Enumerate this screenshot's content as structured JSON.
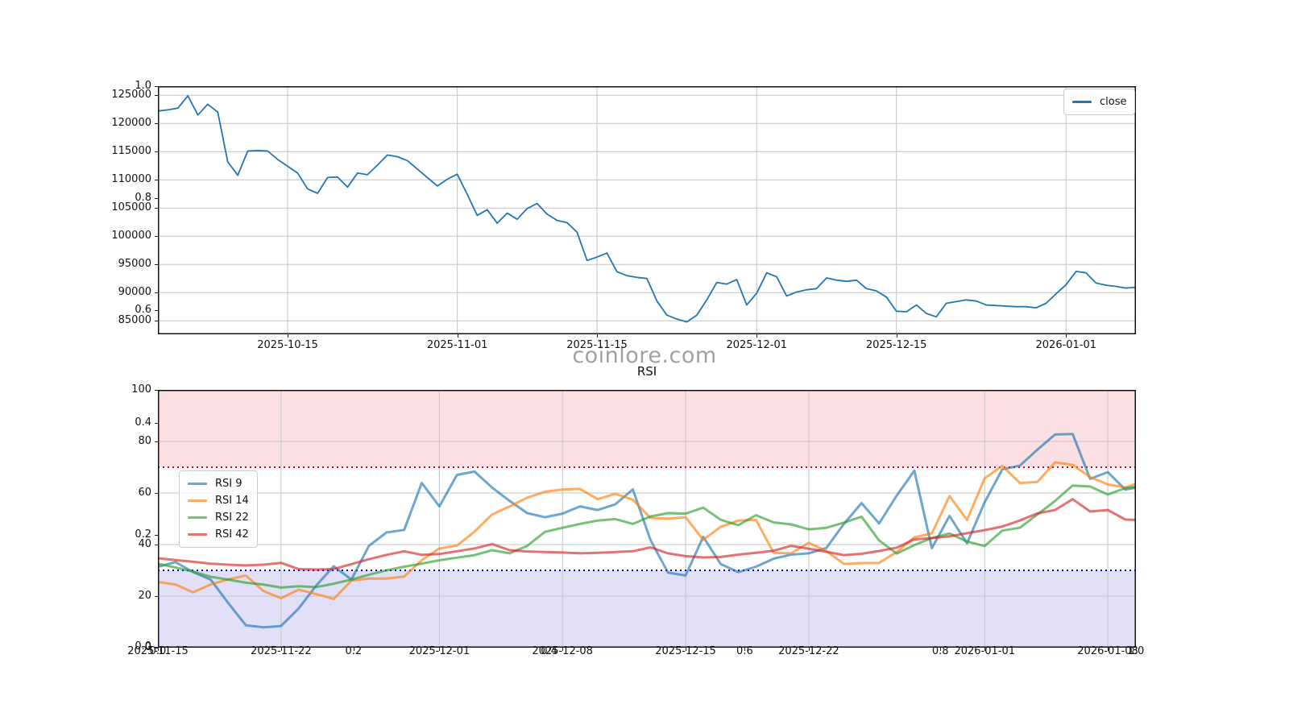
{
  "watermark": "coinlore.com",
  "overlay_axis": {
    "yticks": [
      "1.0",
      "0.8",
      "0.6",
      "0.4",
      "0.2",
      "0.0"
    ],
    "xticks": [
      "0.0",
      "0.2",
      "0.4",
      "0.6",
      "0.8",
      "1.0"
    ]
  },
  "chart_data": [
    {
      "id": "price",
      "type": "line",
      "title": "",
      "legend_position": "upper right",
      "grid": true,
      "x_start": "2025-10-02",
      "x_end": "2026-01-08",
      "x_interval": "1 day",
      "ylim": [
        82600,
        126600
      ],
      "yticks": [
        "125000",
        "120000",
        "115000",
        "110000",
        "105000",
        "100000",
        "95000",
        "90000",
        "85000"
      ],
      "xticks": [
        {
          "label": "2025-10-15",
          "day_index": 13
        },
        {
          "label": "2025-11-01",
          "day_index": 30
        },
        {
          "label": "2025-11-15",
          "day_index": 44
        },
        {
          "label": "2025-12-01",
          "day_index": 60
        },
        {
          "label": "2025-12-15",
          "day_index": 74
        },
        {
          "label": "2026-01-01",
          "day_index": 91
        }
      ],
      "series": [
        {
          "name": "close",
          "color": "#1f77b4",
          "opacity": 1,
          "width": 1.8,
          "values": [
            122200,
            122400,
            122700,
            124900,
            121500,
            123400,
            122000,
            113200,
            110800,
            115100,
            115200,
            115100,
            113600,
            112400,
            111200,
            108400,
            107600,
            110400,
            110500,
            108700,
            111200,
            110900,
            112600,
            114400,
            114100,
            113400,
            111900,
            110400,
            108900,
            110100,
            111000,
            107400,
            103700,
            104700,
            102300,
            104100,
            103000,
            104900,
            105800,
            103900,
            102800,
            102400,
            100700,
            95700,
            96300,
            97000,
            93700,
            93000,
            92700,
            92500,
            88500,
            86000,
            85300,
            84800,
            86000,
            88700,
            91800,
            91500,
            92300,
            87800,
            89900,
            93500,
            92800,
            89400,
            90100,
            90500,
            90700,
            92600,
            92200,
            92000,
            92200,
            90700,
            90300,
            89200,
            86700,
            86600,
            87800,
            86300,
            85700,
            88100,
            88400,
            88700,
            88500,
            87800,
            87700,
            87600,
            87500,
            87500,
            87300,
            88100,
            89800,
            91400,
            93760,
            93500,
            91700,
            91300,
            91100,
            90800,
            90950
          ]
        }
      ]
    },
    {
      "id": "rsi",
      "type": "line",
      "title": "RSI",
      "legend_position": "center left",
      "grid": true,
      "x_start": "2025-11-15",
      "x_end": "2026-01-10",
      "x_interval": "1 day",
      "ylim": [
        0,
        100
      ],
      "yticks": [
        "100",
        "80",
        "60",
        "40",
        "20",
        "0"
      ],
      "xticks": [
        {
          "label": "2025-11-15",
          "day_index": 0
        },
        {
          "label": "2025-11-22",
          "day_index": 7
        },
        {
          "label": "2025-12-01",
          "day_index": 16
        },
        {
          "label": "2025-12-08",
          "day_index": 23
        },
        {
          "label": "2025-12-15",
          "day_index": 30
        },
        {
          "label": "2025-12-22",
          "day_index": 37
        },
        {
          "label": "2026-01-01",
          "day_index": 47
        },
        {
          "label": "2026-01-08",
          "day_index": 54
        }
      ],
      "overbought_band": [
        70,
        100
      ],
      "oversold_band": [
        0,
        30
      ],
      "overbought_line": 70,
      "oversold_line": 30,
      "band_colors": {
        "overbought": "rgba(230,40,70,0.15)",
        "oversold": "rgba(60,50,215,0.15)",
        "overbought_line": "#e00022",
        "oversold_line": "#0000cc"
      },
      "series": [
        {
          "name": "RSI 9",
          "color": "#1f77b4",
          "opacity": 0.65,
          "width": 3,
          "values": [
            31.4,
            33.2,
            29.3,
            26.4,
            17.3,
            8.7,
            7.9,
            8.4,
            15.2,
            24.1,
            31.6,
            26.4,
            39.5,
            44.7,
            45.7,
            63.9,
            54.8,
            67,
            68.3,
            62.1,
            56.9,
            52.2,
            50.6,
            52,
            54.8,
            53.4,
            55.6,
            61.4,
            41.8,
            29.1,
            28,
            43,
            32.4,
            29.3,
            31.4,
            34.5,
            36.1,
            36.6,
            38.7,
            48,
            56.1,
            48.2,
            59,
            68.7,
            38.6,
            51.1,
            40.5,
            56.4,
            69.2,
            70.6,
            76.8,
            82.7,
            82.9,
            65.5,
            68.1,
            61.3,
            62.6
          ]
        },
        {
          "name": "RSI 14",
          "color": "#ff7f0e",
          "opacity": 0.65,
          "width": 3,
          "values": [
            25.5,
            24.5,
            21.5,
            24.5,
            26.5,
            28,
            22,
            19.2,
            22.5,
            20.8,
            18.9,
            26,
            26.8,
            26.8,
            27.6,
            33.9,
            38.5,
            39.6,
            45,
            51.7,
            54.8,
            58.2,
            60.5,
            61.3,
            61.6,
            57.6,
            59.7,
            57.4,
            50.3,
            50.1,
            50.6,
            41.8,
            46.9,
            49.3,
            49.6,
            36.8,
            36.6,
            40.7,
            37.5,
            32.5,
            32.8,
            32.9,
            37.1,
            42.8,
            44.3,
            58.8,
            49.5,
            65.7,
            70.5,
            63.9,
            64.3,
            71.9,
            70.9,
            66.2,
            63.3,
            62.2,
            64.5
          ]
        },
        {
          "name": "RSI 22",
          "color": "#2ca02c",
          "opacity": 0.65,
          "width": 3,
          "values": [
            32.6,
            31.1,
            29.5,
            27.5,
            26.4,
            25.2,
            24.5,
            23.3,
            23.8,
            23.5,
            24.8,
            26.4,
            28.3,
            30,
            31.4,
            32.6,
            33.9,
            34.9,
            35.9,
            37.8,
            36.6,
            39.5,
            44.9,
            46.5,
            48,
            49.3,
            49.9,
            48,
            50.9,
            52.2,
            52,
            54.3,
            49.6,
            47.5,
            51.4,
            48.6,
            47.8,
            45.9,
            46.5,
            48.5,
            50.8,
            41.6,
            36.5,
            39.8,
            42.5,
            44.3,
            41.2,
            39.4,
            45.4,
            46.5,
            51.7,
            56.9,
            62.9,
            62.5,
            59.4,
            61.9,
            62.7
          ]
        },
        {
          "name": "RSI 42",
          "color": "#d62728",
          "opacity": 0.65,
          "width": 3,
          "values": [
            34.7,
            34,
            33.3,
            32.6,
            32.2,
            31.9,
            32.2,
            32.9,
            30.5,
            30.3,
            30.5,
            32.4,
            34.3,
            36,
            37.4,
            36,
            36.3,
            37.4,
            38.5,
            40.2,
            37.8,
            37.3,
            37.1,
            36.9,
            36.6,
            36.8,
            37.1,
            37.4,
            38.9,
            36.6,
            35.5,
            35,
            35.2,
            36.1,
            36.8,
            37.6,
            39.5,
            38.4,
            37.2,
            35.9,
            36.4,
            37.5,
            38.8,
            42,
            42.5,
            43.2,
            44.4,
            45.6,
            47,
            49.3,
            52.1,
            53.4,
            57.6,
            52.8,
            53.4,
            49.7,
            49.5
          ]
        }
      ]
    }
  ]
}
